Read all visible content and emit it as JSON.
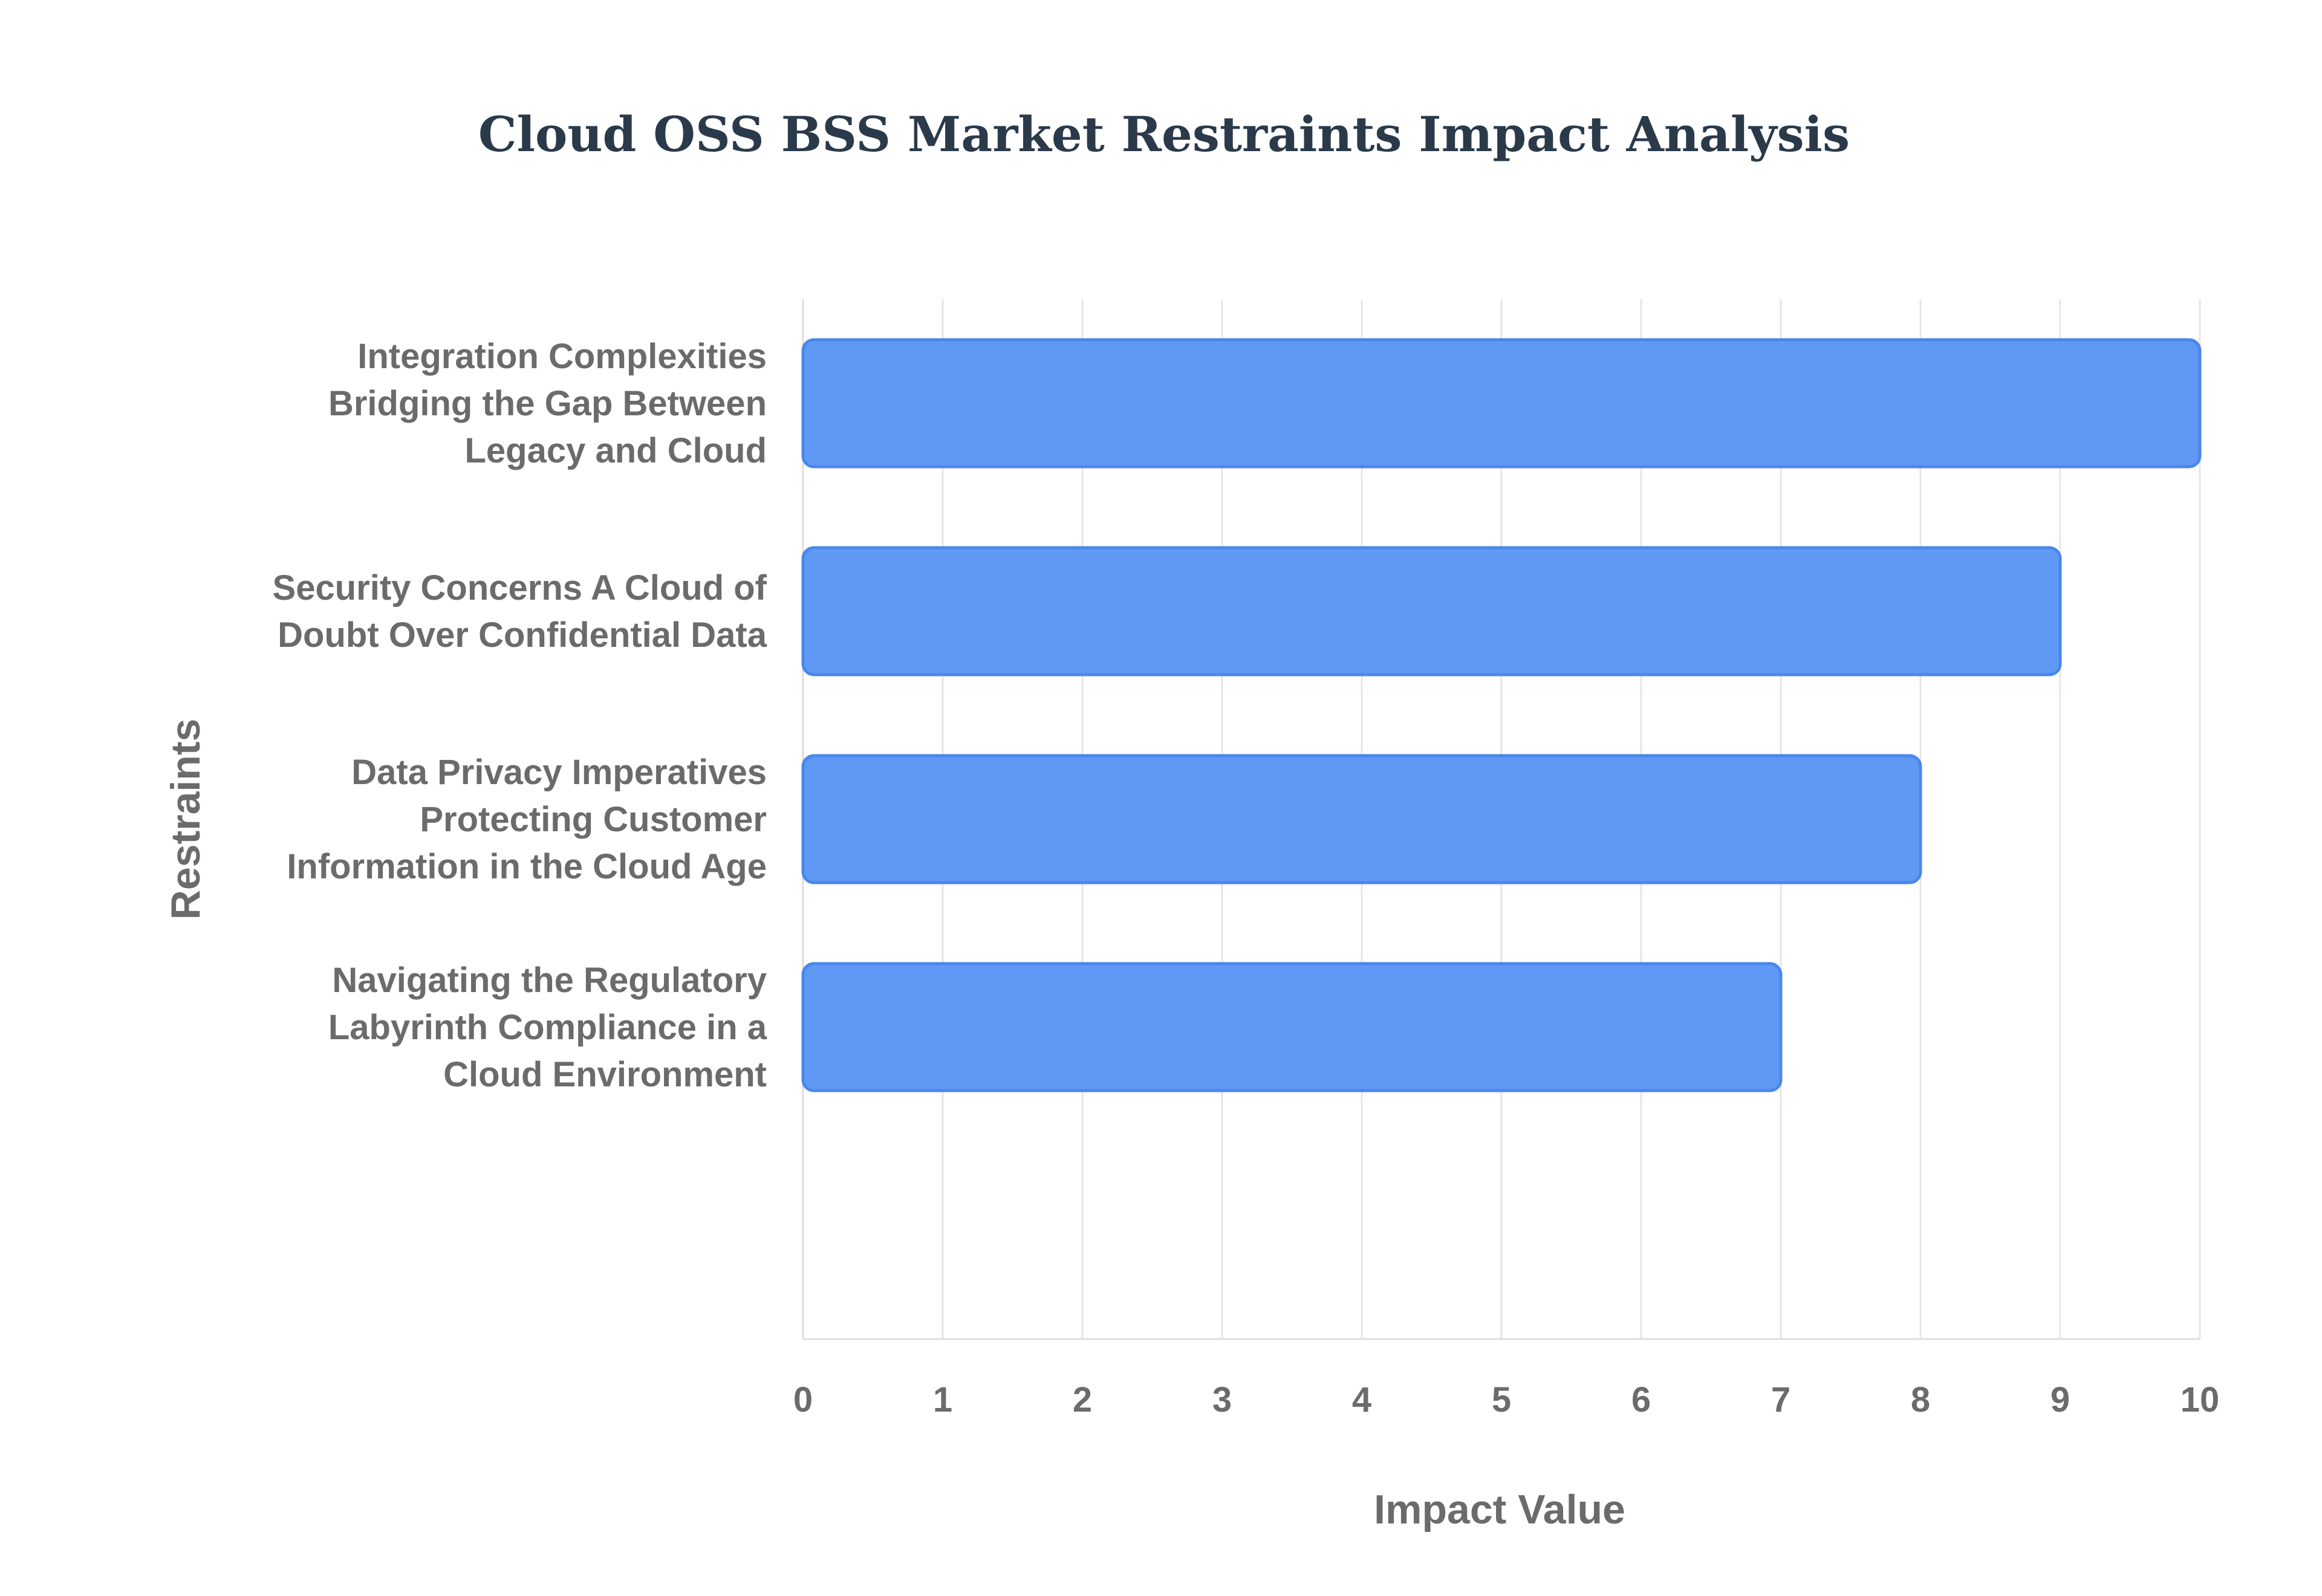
{
  "chart_data": {
    "type": "bar",
    "orientation": "horizontal",
    "title": "Cloud OSS BSS Market Restraints Impact Analysis",
    "xlabel": "Impact Value",
    "ylabel": "Restraints",
    "xlim": [
      0,
      10
    ],
    "xticks": [
      "0",
      "1",
      "2",
      "3",
      "4",
      "5",
      "6",
      "7",
      "8",
      "9",
      "10"
    ],
    "grid": true,
    "bar_color": "#6099f5",
    "categories": [
      [
        "Integration Complexities",
        "Bridging the Gap Between",
        "Legacy and Cloud"
      ],
      [
        "Security Concerns A Cloud of",
        "Doubt Over Confidential Data"
      ],
      [
        "Data Privacy Imperatives",
        "Protecting Customer",
        "Information in the Cloud Age"
      ],
      [
        "Navigating the Regulatory",
        "Labyrinth Compliance in a",
        "Cloud Environment"
      ]
    ],
    "values": [
      10,
      9,
      8,
      7
    ]
  }
}
